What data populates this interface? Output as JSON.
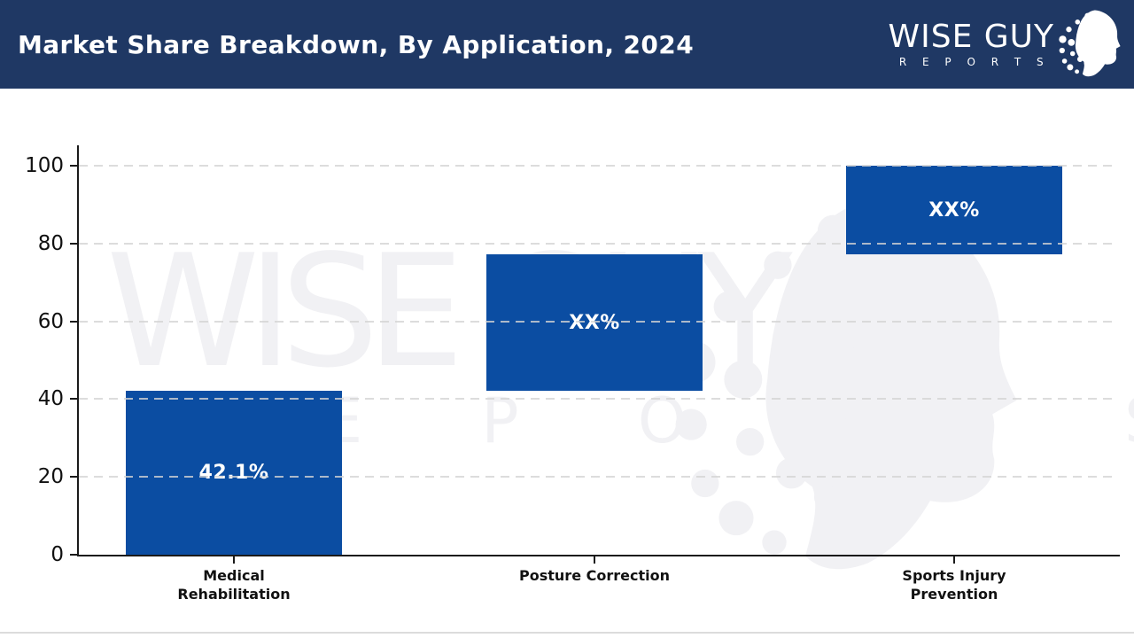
{
  "header": {
    "title": "Market Share Breakdown, By Application, 2024",
    "logo": {
      "wordmark": "WISE GUY",
      "subtext": "R E P O R T S"
    }
  },
  "watermark": {
    "wordmark": "WISE GUY",
    "subtext": "R E P O R T S"
  },
  "chart_data": {
    "type": "bar",
    "subtype": "waterfall",
    "title": "Market Share Breakdown, By Application, 2024",
    "categories": [
      "Medical\nRehabilitation",
      "Posture Correction",
      "Sports Injury\nPrevention"
    ],
    "segments": [
      {
        "category": "Medical Rehabilitation",
        "start": 0,
        "end": 42.1,
        "label": "42.1%"
      },
      {
        "category": "Posture Correction",
        "start": 42.1,
        "end": 77.2,
        "label": "XX%"
      },
      {
        "category": "Sports Injury Prevention",
        "start": 77.2,
        "end": 100,
        "label": "XX%"
      }
    ],
    "xlabel": "",
    "ylabel": "",
    "ylim": [
      0,
      100
    ],
    "yticks": [
      0,
      20,
      40,
      60,
      80,
      100
    ],
    "grid": {
      "axis": "y",
      "style": "dashed"
    },
    "legend": "none",
    "colors": {
      "bar": "#0b4da2",
      "value_label": "#ffffff",
      "header_bg": "#1f3864",
      "gridline": "#d4d4d4",
      "axis": "#1a1a1a"
    }
  }
}
